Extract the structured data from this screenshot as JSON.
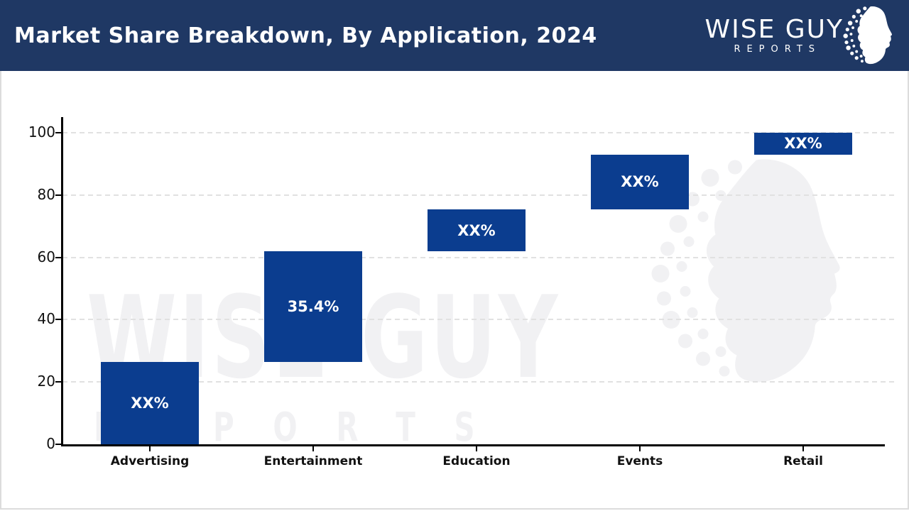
{
  "header": {
    "title": "Market Share Breakdown, By Application, 2024",
    "logo": {
      "line1": "WISE GUY",
      "line2": "REPORTS"
    }
  },
  "watermark": {
    "line1": "WISE GUY",
    "line2": "REPORTS"
  },
  "colors": {
    "header_bg": "#1f3864",
    "bar": "#0b3d8f",
    "grid": "#e1e1e1",
    "axis": "#000000",
    "watermark": "#f1f1f3",
    "bar_label": "#ffffff"
  },
  "chart_data": {
    "type": "bar",
    "subtype": "waterfall",
    "title": "Market Share Breakdown, By Application, 2024",
    "categories": [
      "Advertising",
      "Entertainment",
      "Education",
      "Events",
      "Retail"
    ],
    "series": [
      {
        "name": "Market Share %",
        "starts": [
          0,
          26.5,
          61.9,
          75.4,
          93.0
        ],
        "values": [
          26.5,
          35.4,
          13.5,
          17.6,
          7.0
        ]
      }
    ],
    "labels": [
      "XX%",
      "35.4%",
      "XX%",
      "XX%",
      "XX%"
    ],
    "xlabel": "",
    "ylabel": "",
    "yticks": [
      0,
      20,
      40,
      60,
      80,
      100
    ],
    "ylim": [
      0,
      105
    ],
    "grid": "horizontal-dashed",
    "legend": "none"
  }
}
